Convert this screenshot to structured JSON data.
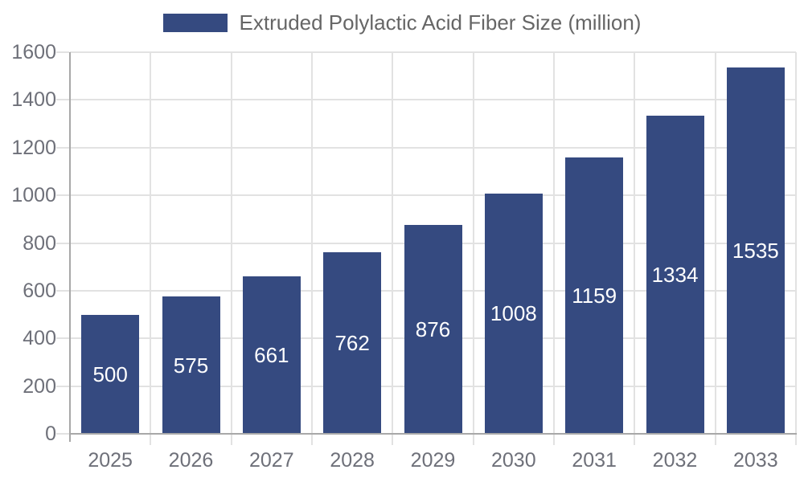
{
  "legend": {
    "label": "Extruded Polylactic Acid Fiber Size (million)"
  },
  "chart_data": {
    "type": "bar",
    "title": "Extruded Polylactic Acid Fiber Size (million)",
    "categories": [
      "2025",
      "2026",
      "2027",
      "2028",
      "2029",
      "2030",
      "2031",
      "2032",
      "2033"
    ],
    "values": [
      500,
      575,
      661,
      762,
      876,
      1008,
      1159,
      1334,
      1535
    ],
    "series": [
      {
        "name": "Extruded Polylactic Acid Fiber Size (million)",
        "values": [
          500,
          575,
          661,
          762,
          876,
          1008,
          1159,
          1334,
          1535
        ]
      }
    ],
    "xlabel": "",
    "ylabel": "",
    "ylim": [
      0,
      1600
    ],
    "yticks": [
      0,
      200,
      400,
      600,
      800,
      1000,
      1200,
      1400,
      1600
    ],
    "grid": true,
    "legend_position": "top-center",
    "bar_labels_inside": true,
    "colors": {
      "bar": "#354A80",
      "bar_label": "#FFFFFF",
      "grid_line": "#E2E2E2",
      "axis_line": "#A8A8A8",
      "axis_text": "#6E7079",
      "legend_text": "#666666",
      "background": "#FFFFFF"
    }
  }
}
